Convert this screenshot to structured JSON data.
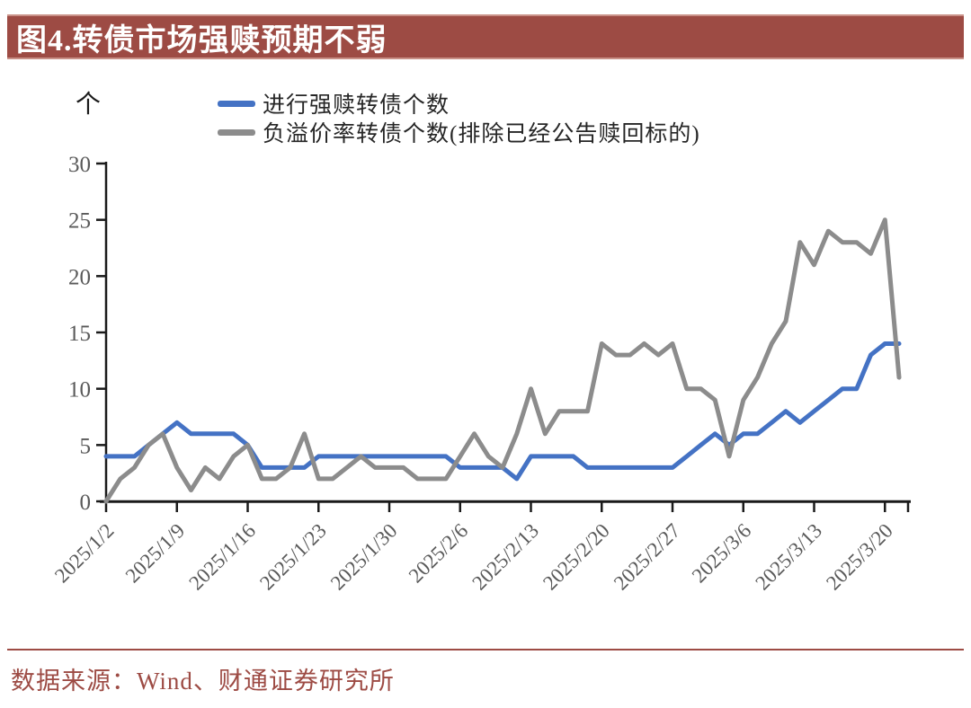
{
  "header": {
    "title": "图4.转债市场强赎预期不弱"
  },
  "y_axis": {
    "unit": "个",
    "ticks": [
      0,
      5,
      10,
      15,
      20,
      25,
      30
    ]
  },
  "legend": [
    {
      "label": "进行强赎转债个数",
      "color": "#4472C4"
    },
    {
      "label": "负溢价率转债个数(排除已经公告赎回标的)",
      "color": "#8C8C8C"
    }
  ],
  "footer": {
    "source": "数据来源：Wind、财通证券研究所"
  },
  "colors": {
    "title_bar_bg": "#9D4B44",
    "title_text": "#FFFFFF",
    "accent_maroon": "#9D4B44",
    "series_blue": "#4472C4",
    "series_gray": "#8C8C8C",
    "axis": "#1a1a1a",
    "tick_label": "#595959"
  },
  "chart_data": {
    "type": "line",
    "title": "图4.转债市场强赎预期不弱",
    "y_unit": "个",
    "ylim": [
      0,
      30
    ],
    "y_ticks": [
      0,
      5,
      10,
      15,
      20,
      25,
      30
    ],
    "grid": false,
    "legend_position": "top",
    "x": [
      "2025/1/2",
      "2025/1/3",
      "2025/1/6",
      "2025/1/7",
      "2025/1/8",
      "2025/1/9",
      "2025/1/10",
      "2025/1/13",
      "2025/1/14",
      "2025/1/15",
      "2025/1/16",
      "2025/1/17",
      "2025/1/20",
      "2025/1/21",
      "2025/1/22",
      "2025/1/23",
      "2025/1/24",
      "2025/1/27",
      "2025/1/28",
      "2025/1/29",
      "2025/1/30",
      "2025/1/31",
      "2025/2/3",
      "2025/2/4",
      "2025/2/5",
      "2025/2/6",
      "2025/2/7",
      "2025/2/10",
      "2025/2/11",
      "2025/2/12",
      "2025/2/13",
      "2025/2/14",
      "2025/2/17",
      "2025/2/18",
      "2025/2/19",
      "2025/2/20",
      "2025/2/21",
      "2025/2/24",
      "2025/2/25",
      "2025/2/26",
      "2025/2/27",
      "2025/2/28",
      "2025/3/3",
      "2025/3/4",
      "2025/3/5",
      "2025/3/6",
      "2025/3/7",
      "2025/3/10",
      "2025/3/11",
      "2025/3/12",
      "2025/3/13",
      "2025/3/14",
      "2025/3/17",
      "2025/3/18",
      "2025/3/19",
      "2025/3/20",
      "2025/3/21"
    ],
    "x_tick_labels": [
      "2025/1/2",
      "2025/1/9",
      "2025/1/16",
      "2025/1/23",
      "2025/1/30",
      "2025/2/6",
      "2025/2/13",
      "2025/2/20",
      "2025/2/27",
      "2025/3/6",
      "2025/3/13",
      "2025/3/20"
    ],
    "x_tick_indices": [
      0,
      5,
      10,
      15,
      20,
      25,
      30,
      35,
      40,
      45,
      50,
      55
    ],
    "series": [
      {
        "name": "进行强赎转债个数",
        "color": "#4472C4",
        "values": [
          4,
          4,
          4,
          5,
          6,
          7,
          6,
          6,
          6,
          6,
          5,
          3,
          3,
          3,
          3,
          4,
          4,
          4,
          4,
          4,
          4,
          4,
          4,
          4,
          4,
          3,
          3,
          3,
          3,
          2,
          4,
          4,
          4,
          4,
          3,
          3,
          3,
          3,
          3,
          3,
          3,
          4,
          5,
          6,
          5,
          6,
          6,
          7,
          8,
          7,
          8,
          9,
          10,
          10,
          13,
          14,
          14
        ]
      },
      {
        "name": "负溢价率转债个数(排除已经公告赎回标的)",
        "color": "#8C8C8C",
        "values": [
          0,
          2,
          3,
          5,
          6,
          3,
          1,
          3,
          2,
          4,
          5,
          2,
          2,
          3,
          6,
          2,
          2,
          3,
          4,
          3,
          3,
          3,
          2,
          2,
          2,
          4,
          6,
          4,
          3,
          6,
          10,
          6,
          8,
          8,
          8,
          14,
          13,
          13,
          14,
          13,
          14,
          10,
          10,
          9,
          4,
          9,
          11,
          14,
          16,
          23,
          21,
          24,
          23,
          23,
          22,
          25,
          11
        ]
      }
    ]
  }
}
